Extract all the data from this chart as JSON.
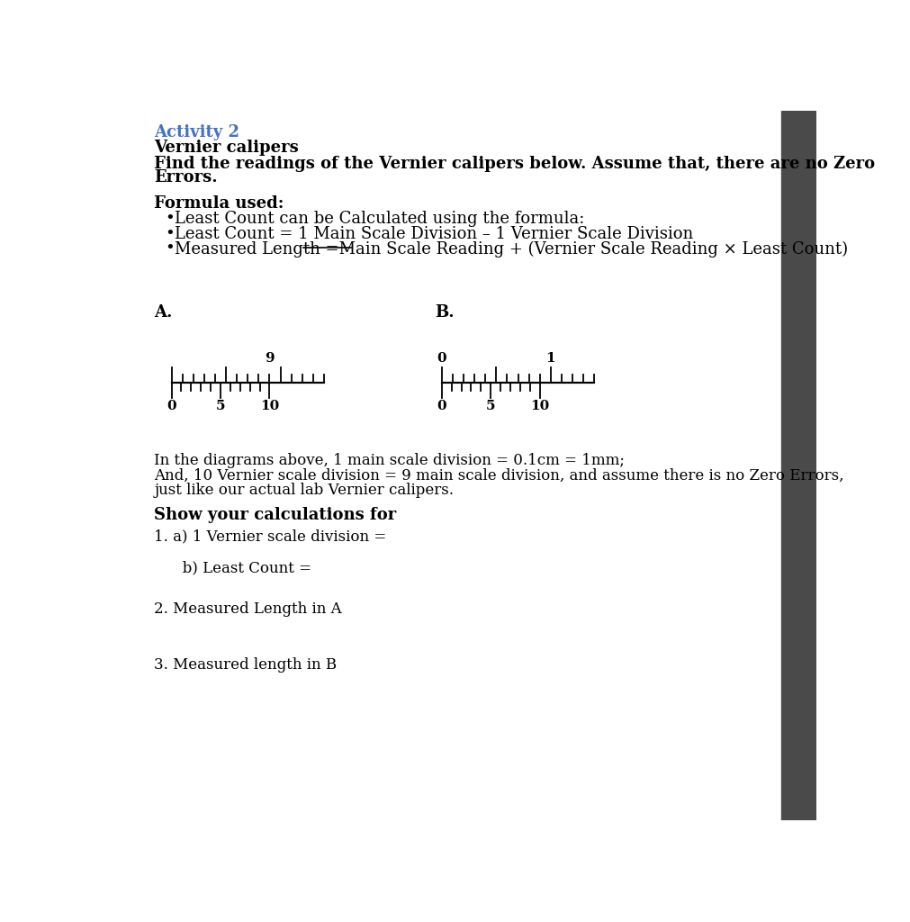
{
  "title_activity": "Activity 2",
  "title_color": "#4472C4",
  "subtitle1": "Vernier calipers",
  "subtitle2": "Find the readings of the Vernier calipers below. Assume that, there are no Zero",
  "subtitle3": "Errors.",
  "formula_header": "Formula used:",
  "bullet1": "Least Count can be Calculated using the formula:",
  "bullet2_pre": "Least Count = 1 Main Scale ",
  "bullet2_underline": "Division –",
  "bullet2_post": " 1 Vernier Scale Division",
  "bullet3": "Measured Length =Main Scale Reading + (Vernier Scale Reading × Least Count)",
  "label_A": "A.",
  "label_B": "B.",
  "diagram_note1": "In the diagrams above, 1 main scale division = 0.1cm = 1mm;",
  "diagram_note2": "And, 10 Vernier scale division = 9 main scale division, and assume there is no Zero Errors,",
  "diagram_note3": "just like our actual lab Vernier calipers.",
  "show_calc": "Show your calculations for",
  "q1a": "1. a) 1 Vernier scale division =",
  "q1b": "   b) Least Count =",
  "q2": "2. Measured Length in A",
  "q3": "3. Measured length in B",
  "bg_color": "#ffffff",
  "text_color": "#000000",
  "right_bar_color": "#4a4a4a"
}
